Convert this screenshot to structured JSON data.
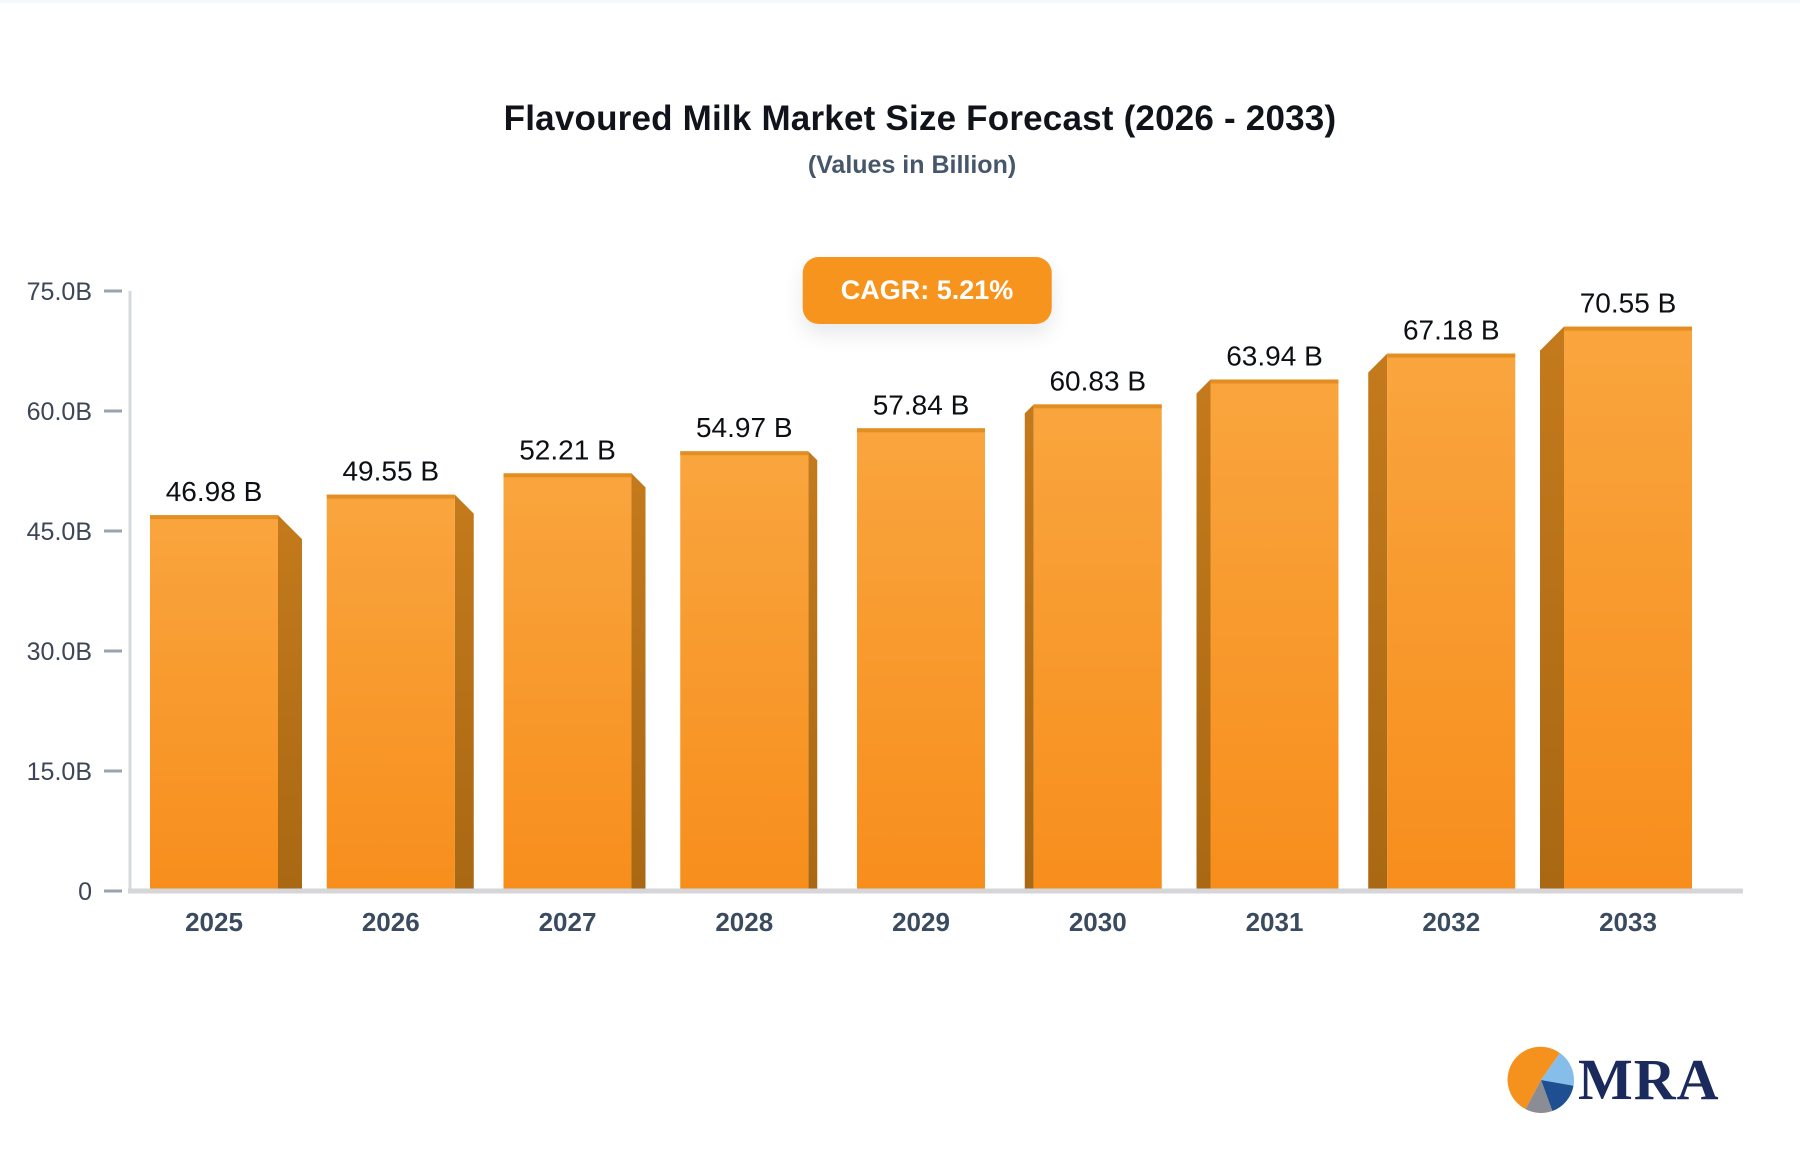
{
  "header": {
    "title": "Flavoured Milk Market Size Forecast (2026 - 2033)",
    "subtitle": "(Values in Billion)"
  },
  "chart_data": {
    "type": "bar",
    "title": "Flavoured Milk Market Size Forecast (2026 - 2033)",
    "subtitle": "(Values in Billion)",
    "categories": [
      "2025",
      "2026",
      "2027",
      "2028",
      "2029",
      "2030",
      "2031",
      "2032",
      "2033"
    ],
    "values": [
      46.98,
      49.55,
      52.21,
      54.97,
      57.84,
      60.83,
      63.94,
      67.18,
      70.55
    ],
    "value_labels": [
      "46.98 B",
      "49.55 B",
      "52.21 B",
      "54.97 B",
      "57.84 B",
      "60.83 B",
      "63.94 B",
      "67.18 B",
      "70.55 B"
    ],
    "xlabel": "",
    "ylabel": "",
    "ylim": [
      0,
      75
    ],
    "yticks": [
      {
        "value": 0,
        "label": "0"
      },
      {
        "value": 15,
        "label": "15.0B"
      },
      {
        "value": 30,
        "label": "30.0B"
      },
      {
        "value": 45,
        "label": "45.0B"
      },
      {
        "value": 60,
        "label": "60.0B"
      },
      {
        "value": 75,
        "label": "75.0B"
      }
    ],
    "grid": false,
    "legend": "none",
    "bar_style": {
      "front_top": "#F9A53E",
      "front_bottom": "#F78E1C",
      "top_edge": "#E08C20",
      "side_top": "#C47A1C",
      "side_bottom": "#A96813",
      "effect": "pseudo-3d, center perspective"
    },
    "axis_style": {
      "axis_line": "#D6D9DD",
      "baseline": "#D4D6DA",
      "tick_dash": "#9AA3AF",
      "tick_text": "#3C4656",
      "category_text": "#3A4B60",
      "value_text": "#0C0F14"
    },
    "annotation": {
      "label": "CAGR: 5.21%",
      "bg": "#F7941E",
      "text_color": "#FFFFFF"
    }
  },
  "logo": {
    "text": "MRA",
    "text_color": "#1B2A5C",
    "pie_colors": {
      "orange": "#F5921E",
      "light_blue": "#87BDE9",
      "dark_blue": "#1D4F91",
      "gray": "#8C8C94"
    }
  }
}
